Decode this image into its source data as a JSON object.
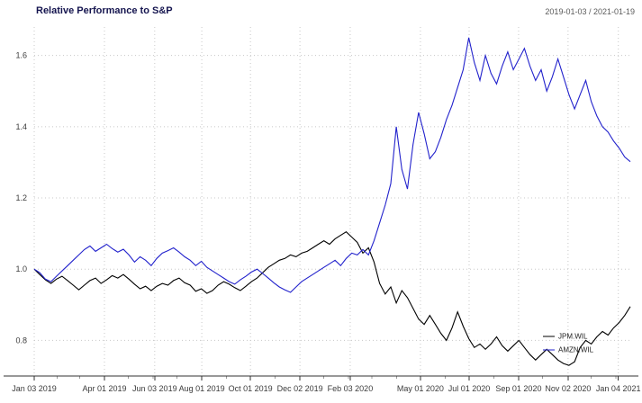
{
  "header": {
    "title": "Relative Performance to S&P",
    "date_range": "2019-01-03 / 2021-01-19"
  },
  "chart_data": {
    "type": "line",
    "title": "Relative Performance to S&P",
    "date_range_label": "2019-01-03 / 2021-01-19",
    "grid": true,
    "x_axis": {
      "total_days": 747,
      "ticks": [
        {
          "label": "Jan 03 2019",
          "day": 0
        },
        {
          "label": "Apr 01 2019",
          "day": 88
        },
        {
          "label": "Jun 03 2019",
          "day": 151
        },
        {
          "label": "Aug 01 2019",
          "day": 210
        },
        {
          "label": "Oct 01 2019",
          "day": 271
        },
        {
          "label": "Dec 02 2019",
          "day": 333
        },
        {
          "label": "Feb 03 2020",
          "day": 396
        },
        {
          "label": "May 01 2020",
          "day": 484
        },
        {
          "label": "Jul 01 2020",
          "day": 545
        },
        {
          "label": "Sep 01 2020",
          "day": 607
        },
        {
          "label": "Nov 02 2020",
          "day": 669
        },
        {
          "label": "Jan 04 2021",
          "day": 732
        }
      ],
      "minor_tick_days": [
        29,
        57,
        118,
        149,
        179,
        241,
        302,
        363,
        394,
        423,
        454,
        515,
        576,
        637,
        698,
        729
      ]
    },
    "y_axis": {
      "min": 0.7,
      "max": 1.68,
      "ticks": [
        0.8,
        1.0,
        1.2,
        1.4,
        1.6
      ]
    },
    "legend": {
      "position": "bottom-right",
      "entries": [
        "JPM.WIL",
        "AMZN.WIL"
      ]
    },
    "series": [
      {
        "name": "JPM.WIL",
        "color": "#000000",
        "values": [
          1.0,
          0.985,
          0.97,
          0.96,
          0.972,
          0.98,
          0.968,
          0.955,
          0.942,
          0.955,
          0.968,
          0.975,
          0.96,
          0.97,
          0.982,
          0.975,
          0.985,
          0.972,
          0.958,
          0.945,
          0.952,
          0.94,
          0.952,
          0.96,
          0.955,
          0.968,
          0.975,
          0.962,
          0.955,
          0.938,
          0.945,
          0.932,
          0.94,
          0.955,
          0.965,
          0.958,
          0.948,
          0.94,
          0.952,
          0.965,
          0.975,
          0.99,
          1.005,
          1.015,
          1.025,
          1.03,
          1.04,
          1.035,
          1.045,
          1.05,
          1.06,
          1.07,
          1.08,
          1.07,
          1.085,
          1.095,
          1.105,
          1.09,
          1.075,
          1.045,
          1.06,
          1.02,
          0.96,
          0.93,
          0.95,
          0.905,
          0.94,
          0.92,
          0.89,
          0.86,
          0.845,
          0.87,
          0.845,
          0.82,
          0.8,
          0.835,
          0.88,
          0.84,
          0.805,
          0.78,
          0.79,
          0.775,
          0.79,
          0.81,
          0.785,
          0.77,
          0.785,
          0.8,
          0.78,
          0.76,
          0.745,
          0.76,
          0.775,
          0.76,
          0.745,
          0.735,
          0.73,
          0.74,
          0.78,
          0.8,
          0.79,
          0.81,
          0.825,
          0.815,
          0.835,
          0.85,
          0.87,
          0.895
        ]
      },
      {
        "name": "AMZN.WIL",
        "color": "#2222cc",
        "values": [
          1.0,
          0.99,
          0.972,
          0.965,
          0.98,
          0.995,
          1.01,
          1.025,
          1.04,
          1.055,
          1.065,
          1.05,
          1.06,
          1.07,
          1.058,
          1.048,
          1.056,
          1.04,
          1.02,
          1.035,
          1.025,
          1.01,
          1.03,
          1.045,
          1.052,
          1.06,
          1.048,
          1.035,
          1.025,
          1.01,
          1.022,
          1.005,
          0.995,
          0.985,
          0.975,
          0.965,
          0.958,
          0.97,
          0.98,
          0.992,
          1.0,
          0.988,
          0.975,
          0.962,
          0.95,
          0.942,
          0.935,
          0.95,
          0.965,
          0.975,
          0.985,
          0.995,
          1.005,
          1.015,
          1.025,
          1.01,
          1.03,
          1.045,
          1.04,
          1.055,
          1.04,
          1.08,
          1.13,
          1.18,
          1.24,
          1.4,
          1.28,
          1.225,
          1.35,
          1.44,
          1.38,
          1.31,
          1.33,
          1.37,
          1.42,
          1.46,
          1.51,
          1.56,
          1.65,
          1.58,
          1.53,
          1.6,
          1.55,
          1.52,
          1.57,
          1.61,
          1.56,
          1.59,
          1.62,
          1.57,
          1.53,
          1.56,
          1.5,
          1.54,
          1.59,
          1.54,
          1.49,
          1.45,
          1.49,
          1.53,
          1.47,
          1.43,
          1.4,
          1.385,
          1.36,
          1.34,
          1.315,
          1.302
        ]
      }
    ]
  },
  "colors": {
    "background": "#ffffff",
    "title_text": "#15154f",
    "range_text": "#5a5a5a",
    "grid": "#c8c8c8",
    "axis": "#333333",
    "jpm_line": "#000000",
    "amzn_line": "#2222cc"
  }
}
